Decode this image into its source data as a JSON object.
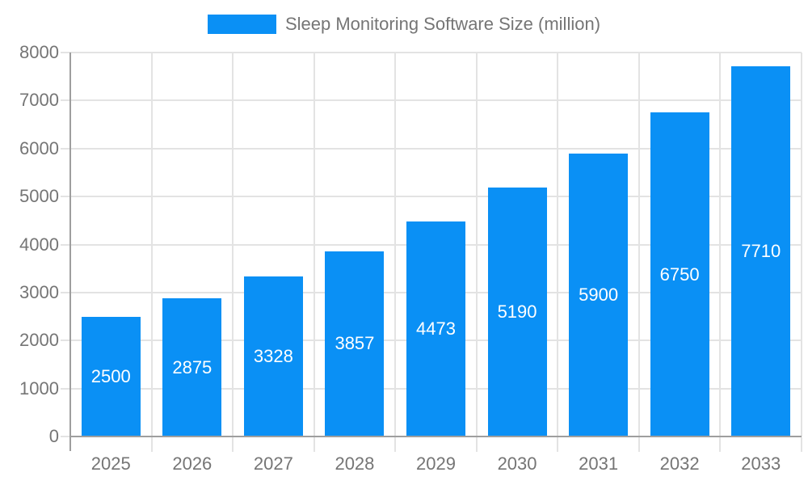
{
  "chart_data": {
    "type": "bar",
    "title": "Sleep Monitoring Software Size (million)",
    "categories": [
      "2025",
      "2026",
      "2027",
      "2028",
      "2029",
      "2030",
      "2031",
      "2032",
      "2033"
    ],
    "values": [
      2500,
      2875,
      3328,
      3857,
      4473,
      5190,
      5900,
      6750,
      7710
    ],
    "xlabel": "",
    "ylabel": "",
    "ylim": [
      0,
      8000
    ],
    "yticks": [
      0,
      1000,
      2000,
      3000,
      4000,
      5000,
      6000,
      7000,
      8000
    ],
    "grid": true,
    "legend_position": "top",
    "value_label_style": "white-centered-inside-bar"
  },
  "colors": {
    "bar": "#0a90f5",
    "grid": "#e3e3e3",
    "axis": "#9e9e9e",
    "text": "#757575",
    "value_label": "#ffffff",
    "background": "#ffffff"
  }
}
